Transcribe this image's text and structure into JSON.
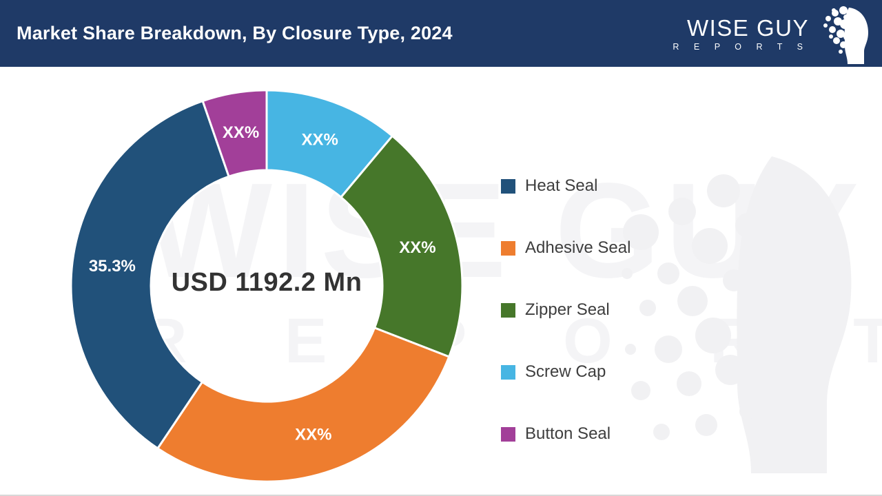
{
  "header": {
    "title": "Market Share Breakdown, By Closure Type, 2024",
    "brand": {
      "line1": "WISE GUY",
      "line2": "R E P O R T S"
    }
  },
  "watermark": {
    "line1": "WISE GUY",
    "line2": "R E P O R T S"
  },
  "chart_data": {
    "type": "pie",
    "subtype": "donut",
    "title": "Market Share Breakdown, By Closure Type, 2024",
    "center_label": "USD 1192.2 Mn",
    "legend_position": "right",
    "series": [
      {
        "name": "Heat Seal",
        "value": 35.3,
        "display_label": "35.3%",
        "color": "#21517a"
      },
      {
        "name": "Adhesive Seal",
        "value": 28.5,
        "display_label": "XX%",
        "color": "#ee7d2f"
      },
      {
        "name": "Zipper Seal",
        "value": 19.8,
        "display_label": "XX%",
        "color": "#46772a"
      },
      {
        "name": "Screw Cap",
        "value": 11.1,
        "display_label": "XX%",
        "color": "#47b5e3"
      },
      {
        "name": "Button Seal",
        "value": 5.3,
        "display_label": "XX%",
        "color": "#a23f99"
      }
    ],
    "draw_order_clockwise_from_top": [
      "Screw Cap",
      "Zipper Seal",
      "Adhesive Seal",
      "Heat Seal",
      "Button Seal"
    ]
  }
}
